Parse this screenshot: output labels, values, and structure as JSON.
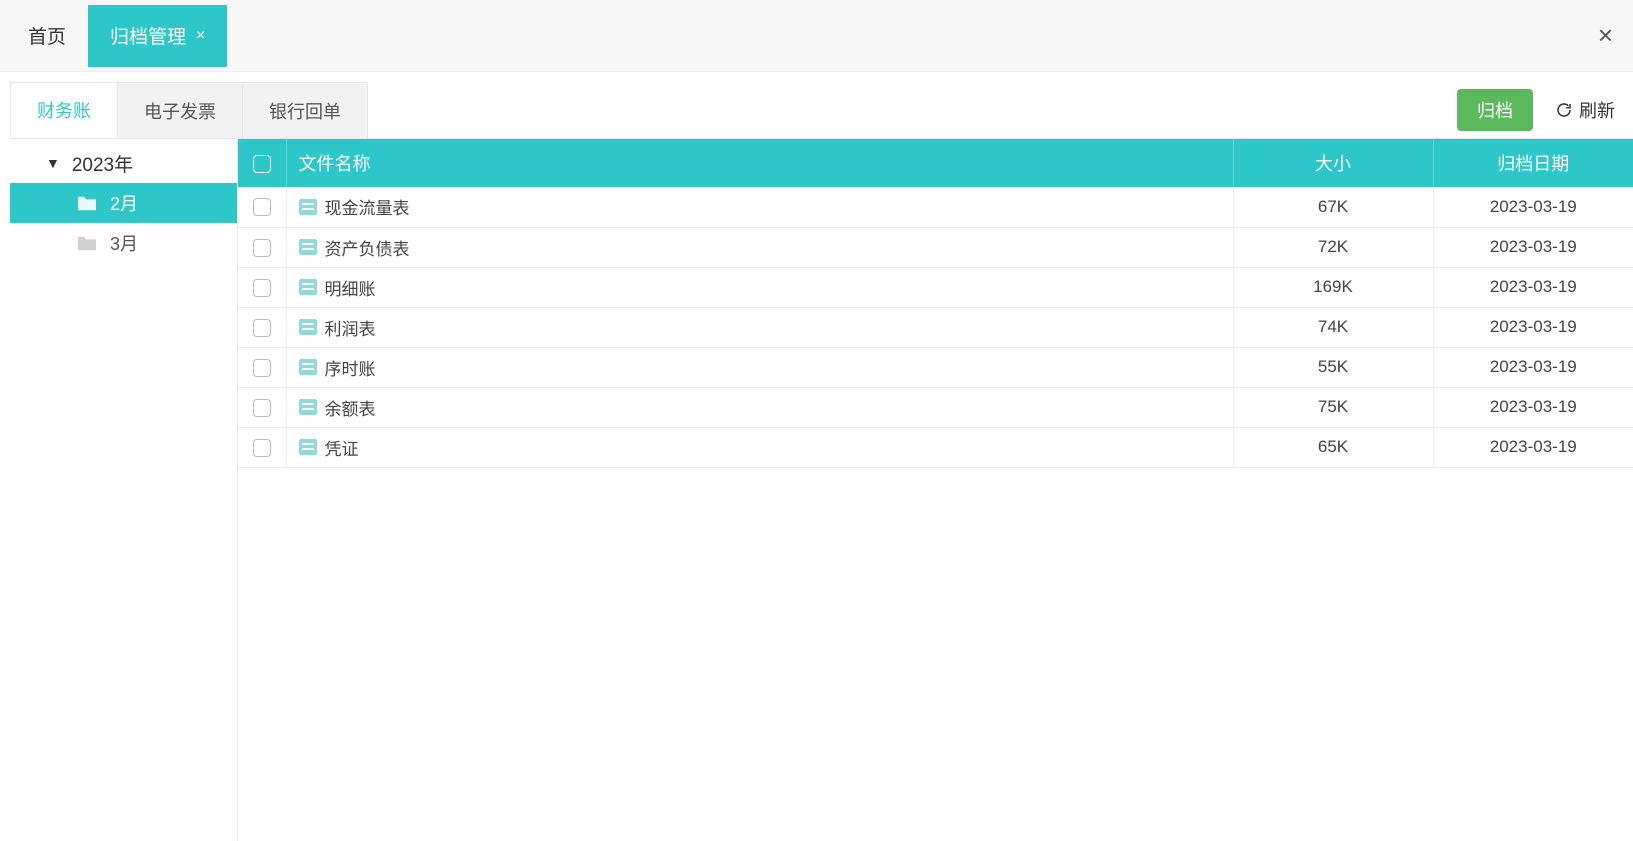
{
  "colors": {
    "accent": "#2ec7c9",
    "primary_button": "#5cb85c",
    "header_bg": "#2ec7c9",
    "border": "#e6e6e6",
    "row_border": "#eeeeee",
    "page_bg": "#f7f7f7",
    "text": "#333333"
  },
  "top_tabs": {
    "items": [
      {
        "label": "首页",
        "active": false,
        "closeable": false
      },
      {
        "label": "归档管理",
        "active": true,
        "closeable": true
      }
    ]
  },
  "sub_tabs": {
    "items": [
      {
        "label": "财务账",
        "active": true
      },
      {
        "label": "电子发票",
        "active": false
      },
      {
        "label": "银行回单",
        "active": false
      }
    ]
  },
  "actions": {
    "archive_button": "归档",
    "refresh_label": "刷新"
  },
  "tree": {
    "year_label": "2023年",
    "months": [
      {
        "label": "2月",
        "active": true
      },
      {
        "label": "3月",
        "active": false
      }
    ]
  },
  "table": {
    "columns": {
      "name": "文件名称",
      "size": "大小",
      "date": "归档日期"
    },
    "rows": [
      {
        "name": "现金流量表",
        "size": "67K",
        "date": "2023-03-19"
      },
      {
        "name": "资产负债表",
        "size": "72K",
        "date": "2023-03-19"
      },
      {
        "name": "明细账",
        "size": "169K",
        "date": "2023-03-19"
      },
      {
        "name": "利润表",
        "size": "74K",
        "date": "2023-03-19"
      },
      {
        "name": "序时账",
        "size": "55K",
        "date": "2023-03-19"
      },
      {
        "name": "余额表",
        "size": "75K",
        "date": "2023-03-19"
      },
      {
        "name": "凭证",
        "size": "65K",
        "date": "2023-03-19"
      }
    ]
  }
}
